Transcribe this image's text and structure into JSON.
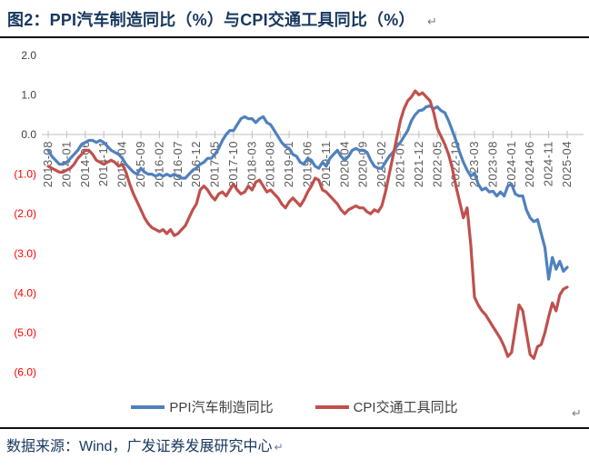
{
  "title": "图2：PPI汽车制造同比（%）与CPI交通工具同比（%）",
  "footer": {
    "text": "数据来源：Wind，广发证券发展研究中心"
  },
  "icons": {
    "return_mark": "↵"
  },
  "colors": {
    "title_navy": "#17375E",
    "ppi_blue": "#4F81BD",
    "cpi_red": "#C0504D",
    "axis_line": "#BFBFBF",
    "tick_label": "#595959",
    "negative_label": "#FF0000",
    "separator": "#0d0d14"
  },
  "legend": {
    "items": [
      "PPI汽车制造同比",
      "CPI交通工具同比"
    ]
  },
  "chart_data": {
    "type": "line",
    "x_unit": "month",
    "x_range": [
      "2013-08",
      "2025-04"
    ],
    "x_tick_labels": [
      "2013-08",
      "2014-01",
      "2014-06",
      "2014-11",
      "2015-04",
      "2015-09",
      "2016-02",
      "2016-07",
      "2016-12",
      "2017-05",
      "2017-10",
      "2018-03",
      "2018-08",
      "2019-01",
      "2019-06",
      "2019-11",
      "2020-04",
      "2020-09",
      "2021-02",
      "2021-07",
      "2021-12",
      "2022-05",
      "2022-10",
      "2023-03",
      "2023-08",
      "2024-01",
      "2024-06",
      "2024-11",
      "2025-04"
    ],
    "x_tick_step_months": 5,
    "y_ticks": [
      2,
      1,
      0,
      -1,
      -2,
      -3,
      -4,
      -5,
      -6
    ],
    "y_tick_labels": [
      "2.0",
      "1.0",
      "0.0",
      "(1.0)",
      "(2.0)",
      "(3.0)",
      "(4.0)",
      "(5.0)",
      "(6.0)"
    ],
    "ylim": [
      -6.5,
      2.0
    ],
    "grid": "zero-axis-only",
    "legend_position": "bottom-center",
    "series": [
      {
        "name": "PPI汽车制造同比",
        "color": "#4F81BD",
        "values": [
          -0.4,
          -0.55,
          -0.65,
          -0.75,
          -0.75,
          -0.7,
          -0.6,
          -0.5,
          -0.4,
          -0.25,
          -0.2,
          -0.15,
          -0.15,
          -0.2,
          -0.15,
          -0.2,
          -0.3,
          -0.4,
          -0.45,
          -0.5,
          -0.6,
          -0.75,
          -0.85,
          -0.95,
          -1.0,
          -0.85,
          -0.95,
          -1.0,
          -1.0,
          -1.05,
          -1.0,
          -1.05,
          -1.0,
          -1.05,
          -1.0,
          -1.05,
          -1.1,
          -1.1,
          -1.0,
          -0.9,
          -0.85,
          -0.75,
          -0.7,
          -0.6,
          -0.6,
          -0.5,
          -0.35,
          -0.15,
          0.0,
          0.1,
          0.1,
          0.25,
          0.4,
          0.45,
          0.4,
          0.4,
          0.3,
          0.4,
          0.45,
          0.3,
          0.25,
          0.1,
          -0.05,
          -0.2,
          -0.3,
          -0.35,
          -0.5,
          -0.55,
          -0.7,
          -0.75,
          -0.6,
          -0.65,
          -0.8,
          -0.85,
          -0.7,
          -0.8,
          -0.6,
          -0.5,
          -0.4,
          -0.55,
          -0.65,
          -0.55,
          -0.4,
          -0.35,
          -0.4,
          -0.4,
          -0.45,
          -0.65,
          -0.8,
          -0.85,
          -0.85,
          -0.7,
          -0.55,
          -0.45,
          -0.3,
          -0.2,
          -0.05,
          0.1,
          0.35,
          0.5,
          0.6,
          0.62,
          0.7,
          0.72,
          0.65,
          0.7,
          0.6,
          0.55,
          0.35,
          0.1,
          -0.15,
          -0.45,
          -0.7,
          -0.9,
          -1.05,
          -0.97,
          -1.25,
          -1.4,
          -1.35,
          -1.45,
          -1.43,
          -1.55,
          -1.45,
          -1.55,
          -1.3,
          -1.25,
          -1.5,
          -1.55,
          -1.55,
          -1.9,
          -2.1,
          -2.2,
          -2.15,
          -2.5,
          -2.85,
          -3.65,
          -3.1,
          -3.4,
          -3.2,
          -3.45,
          -3.35
        ]
      },
      {
        "name": "CPI交通工具同比",
        "color": "#C0504D",
        "values": [
          -0.8,
          -0.85,
          -0.9,
          -0.95,
          -0.95,
          -0.9,
          -0.85,
          -0.75,
          -0.6,
          -0.5,
          -0.4,
          -0.4,
          -0.5,
          -0.65,
          -0.7,
          -0.75,
          -0.7,
          -0.65,
          -0.7,
          -0.8,
          -0.75,
          -0.95,
          -1.25,
          -1.5,
          -1.7,
          -1.9,
          -2.1,
          -2.25,
          -2.35,
          -2.4,
          -2.45,
          -2.4,
          -2.5,
          -2.4,
          -2.55,
          -2.5,
          -2.4,
          -2.3,
          -2.1,
          -1.9,
          -1.75,
          -1.4,
          -1.3,
          -1.4,
          -1.55,
          -1.65,
          -1.5,
          -1.45,
          -1.55,
          -1.4,
          -1.25,
          -1.4,
          -1.5,
          -1.45,
          -1.3,
          -1.4,
          -1.2,
          -1.15,
          -1.3,
          -1.45,
          -1.4,
          -1.5,
          -1.6,
          -1.75,
          -1.85,
          -1.7,
          -1.6,
          -1.7,
          -1.8,
          -1.65,
          -1.45,
          -1.3,
          -1.1,
          -1.15,
          -1.4,
          -1.45,
          -1.55,
          -1.65,
          -1.75,
          -1.9,
          -2.0,
          -1.9,
          -1.85,
          -1.8,
          -1.85,
          -1.85,
          -1.95,
          -2.0,
          -1.9,
          -1.95,
          -1.8,
          -1.45,
          -1.0,
          -0.55,
          -0.1,
          0.35,
          0.65,
          0.85,
          0.95,
          1.1,
          1.0,
          1.05,
          0.95,
          0.85,
          0.55,
          0.15,
          -0.05,
          -0.25,
          -0.5,
          -0.85,
          -1.3,
          -1.7,
          -2.1,
          -1.85,
          -2.8,
          -4.1,
          -4.3,
          -4.45,
          -4.55,
          -4.7,
          -4.85,
          -5.0,
          -5.15,
          -5.35,
          -5.6,
          -5.5,
          -4.9,
          -4.3,
          -4.45,
          -5.0,
          -5.55,
          -5.65,
          -5.35,
          -5.3,
          -5.0,
          -4.6,
          -4.25,
          -4.45,
          -4.05,
          -3.9,
          -3.85
        ]
      }
    ]
  }
}
